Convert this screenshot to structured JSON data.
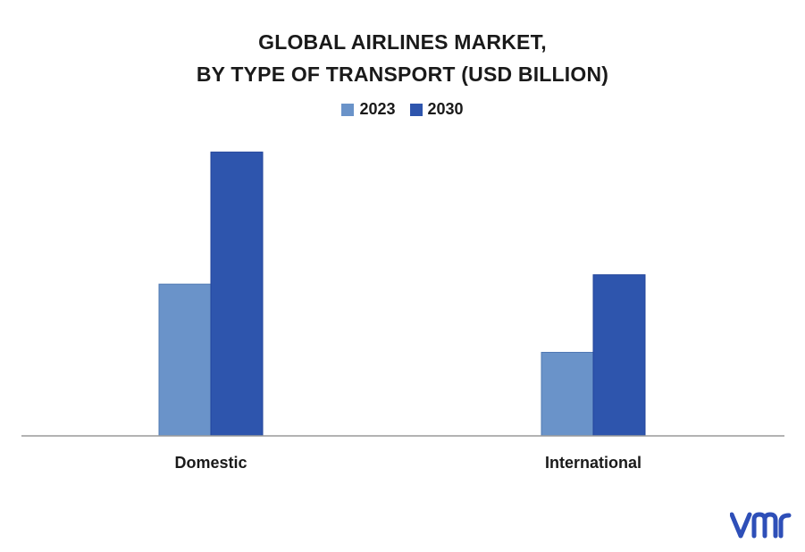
{
  "chart_data": {
    "type": "bar",
    "title": "GLOBAL AIRLINES MARKET,",
    "subtitle": "BY TYPE OF TRANSPORT (USD BILLION)",
    "categories": [
      "Domestic",
      "International"
    ],
    "series": [
      {
        "name": "2023",
        "values": [
          178,
          98
        ],
        "color": "#6a93c9"
      },
      {
        "name": "2030",
        "values": [
          333,
          189
        ],
        "color": "#2e55ad"
      }
    ],
    "xlabel": "",
    "ylabel": "",
    "ylim": [
      0,
      350
    ],
    "grid": false,
    "legend_position": "top-center"
  },
  "logo": {
    "text": "vmr",
    "color": "#2e4fb8"
  }
}
